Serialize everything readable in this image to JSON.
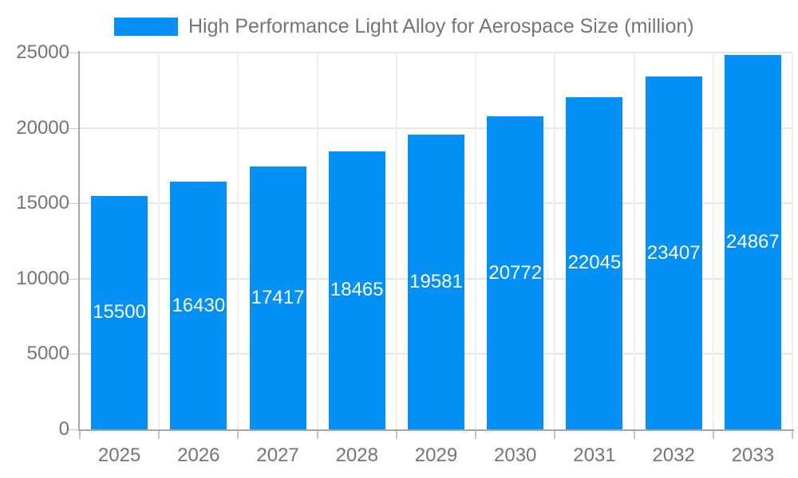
{
  "legend": {
    "label": "High Performance Light Alloy for Aerospace Size (million)"
  },
  "chart_data": {
    "type": "bar",
    "title": "High Performance Light Alloy for Aerospace Size (million)",
    "categories": [
      "2025",
      "2026",
      "2027",
      "2028",
      "2029",
      "2030",
      "2031",
      "2032",
      "2033"
    ],
    "values": [
      15500,
      16430,
      17417,
      18465,
      19581,
      20772,
      22045,
      23407,
      24867
    ],
    "xlabel": "",
    "ylabel": "",
    "ylim": [
      0,
      25000
    ],
    "yticks": [
      0,
      5000,
      10000,
      15000,
      20000,
      25000
    ],
    "grid": true,
    "legend_position": "top-left",
    "bar_color": "#0590f6",
    "value_label_color": "#ffffff",
    "axis_text_color": "#757575"
  }
}
